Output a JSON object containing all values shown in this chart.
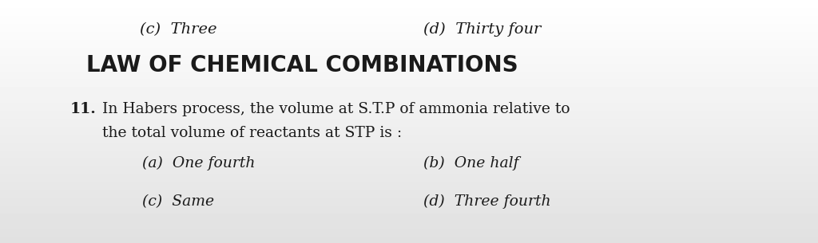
{
  "bg_color": "#d4d1cc",
  "text_color": "#1a1a1a",
  "line1_left": "(c)  Three",
  "line1_right": "(d)  Thirty four",
  "section_title": "LAW OF CHEMICAL COMBINATIONS",
  "q11_label": "11.",
  "q11_text_line1": "In Habers process, the volume at S.T.P of ammonia relative to",
  "q11_text_line2": "the total volume of reactants at STP is :",
  "opt_a": "(a)  One fourth",
  "opt_b": "(b)  One half",
  "opt_c": "(c)  Same",
  "opt_d": "(d)  Three fourth",
  "font_size_top": 14,
  "font_size_title": 20,
  "font_size_q": 13.5,
  "font_size_opt": 13.5
}
